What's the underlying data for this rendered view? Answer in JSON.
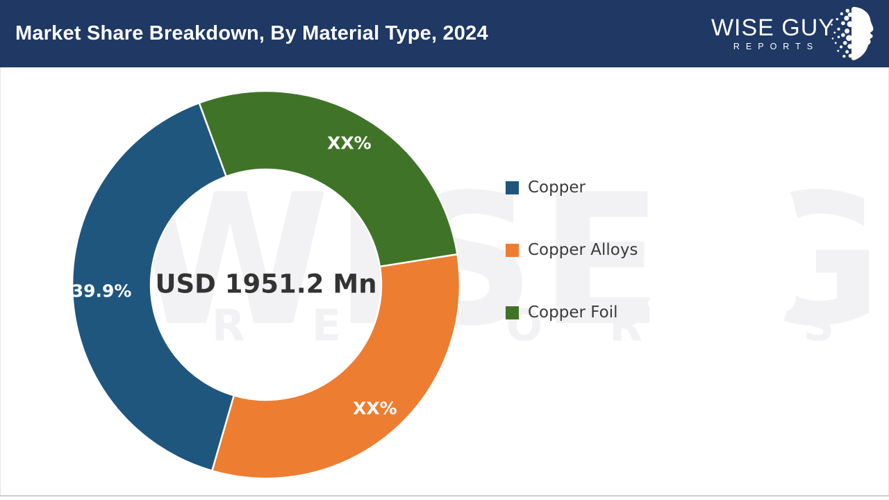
{
  "header": {
    "title": "Market Share Breakdown, By Material Type, 2024",
    "brand": {
      "line1": "WISE GUY",
      "line2": "REPORTS"
    }
  },
  "watermark": {
    "line1": "WISE GUY",
    "line2": "REPORTS"
  },
  "theme": {
    "header_bg": "#1f3864",
    "header_text": "#ffffff",
    "legend_text": "#3a3a3a",
    "center_text": "#333333",
    "divider": "#cfcfcf",
    "watermark_color": "#f2f2f4"
  },
  "chart_data": {
    "type": "pie",
    "subtype": "donut",
    "title": "Market Share Breakdown, By Material Type, 2024",
    "center_label": "USD 1951.2 Mn",
    "direction": "clockwise",
    "start_angle_deg": -20.2,
    "categories": [
      "Copper Foil",
      "Copper Alloys",
      "Copper"
    ],
    "values": [
      28.1,
      32.0,
      39.9
    ],
    "display_labels": [
      "XX%",
      "XX%",
      "39.9%"
    ],
    "colors": [
      "#3f7428",
      "#ed7d31",
      "#1f567d"
    ],
    "label_color": "#ffffff",
    "legend": {
      "position": "right",
      "entries": [
        {
          "label": "Copper",
          "color": "#1f567d"
        },
        {
          "label": "Copper Alloys",
          "color": "#ed7d31"
        },
        {
          "label": "Copper Foil",
          "color": "#3f7428"
        }
      ]
    }
  }
}
